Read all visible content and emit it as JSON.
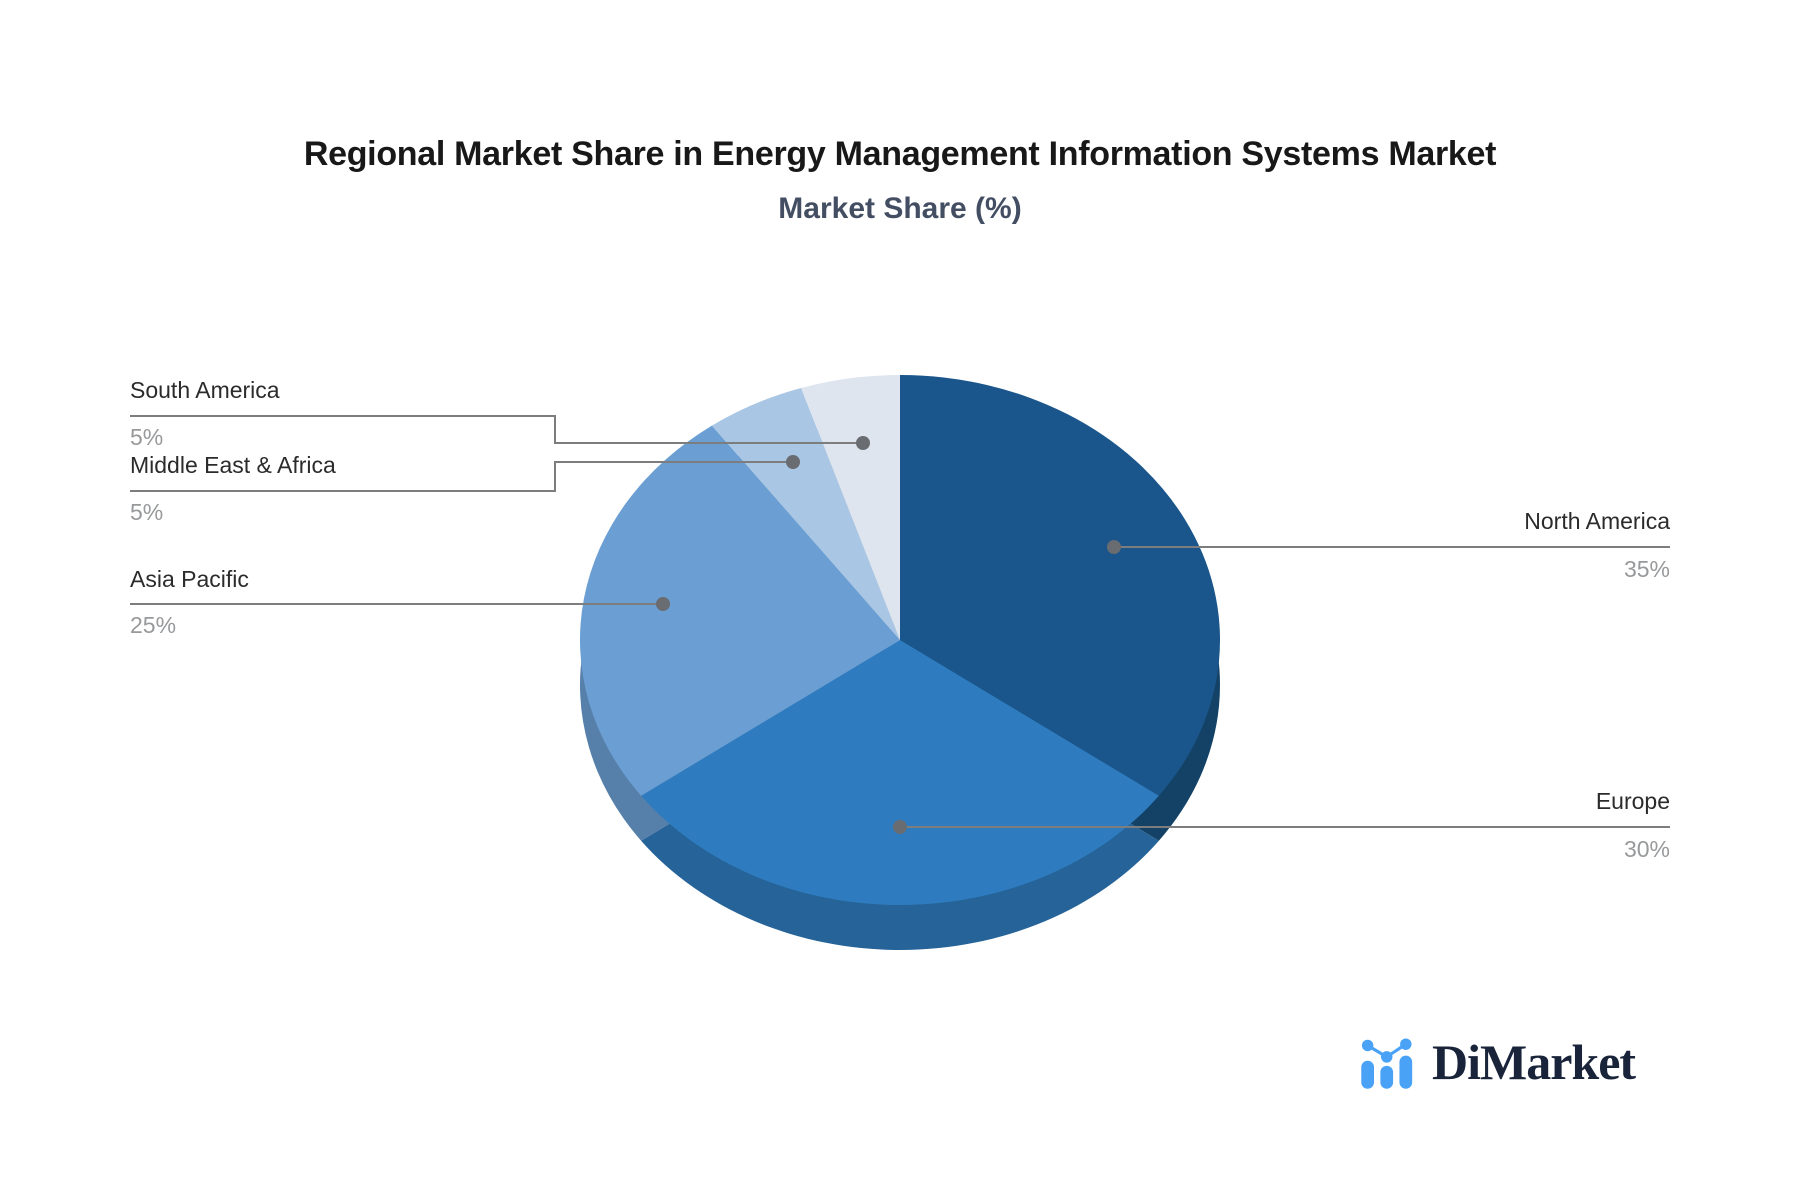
{
  "title": "Regional Market Share in Energy Management Information Systems Market",
  "subtitle": "Market Share (%)",
  "chart_data": {
    "type": "pie",
    "title": "Regional Market Share in Energy Management Information Systems Market",
    "subtitle": "Market Share (%)",
    "unit": "%",
    "effect": "3d",
    "start_angle_deg": 0,
    "direction": "clockwise",
    "legend_position": "none",
    "categories": [
      "North America",
      "Europe",
      "Asia Pacific",
      "Middle East & Africa",
      "South America"
    ],
    "values": [
      35,
      30,
      25,
      5,
      5
    ],
    "series": [
      {
        "name": "North America",
        "value": 35,
        "label": "35%",
        "color": "#1a568b",
        "side_color": "#134266",
        "label_side": "right"
      },
      {
        "name": "Europe",
        "value": 30,
        "label": "30%",
        "color": "#2e7cbf",
        "side_color": "#256398",
        "label_side": "right"
      },
      {
        "name": "Asia Pacific",
        "value": 25,
        "label": "25%",
        "color": "#6b9fd3",
        "side_color": "#567fa9",
        "label_side": "left"
      },
      {
        "name": "Middle East & Africa",
        "value": 5,
        "label": "5%",
        "color": "#a9c7e4",
        "side_color": "#87a0b9",
        "label_side": "left"
      },
      {
        "name": "South America",
        "value": 5,
        "label": "5%",
        "color": "#dee5ef",
        "side_color": "#b2bcc9",
        "label_side": "left"
      }
    ],
    "leader_line_color": "#7d7d7d",
    "dot_color": "#696c70",
    "label_color": "#2b2b2b",
    "value_color": "#97999b"
  },
  "brand": {
    "name": "DiMarket",
    "icon": "bar-chart-logo-icon",
    "text_color": "#19243a",
    "bar_color": "#4aa2f7"
  }
}
